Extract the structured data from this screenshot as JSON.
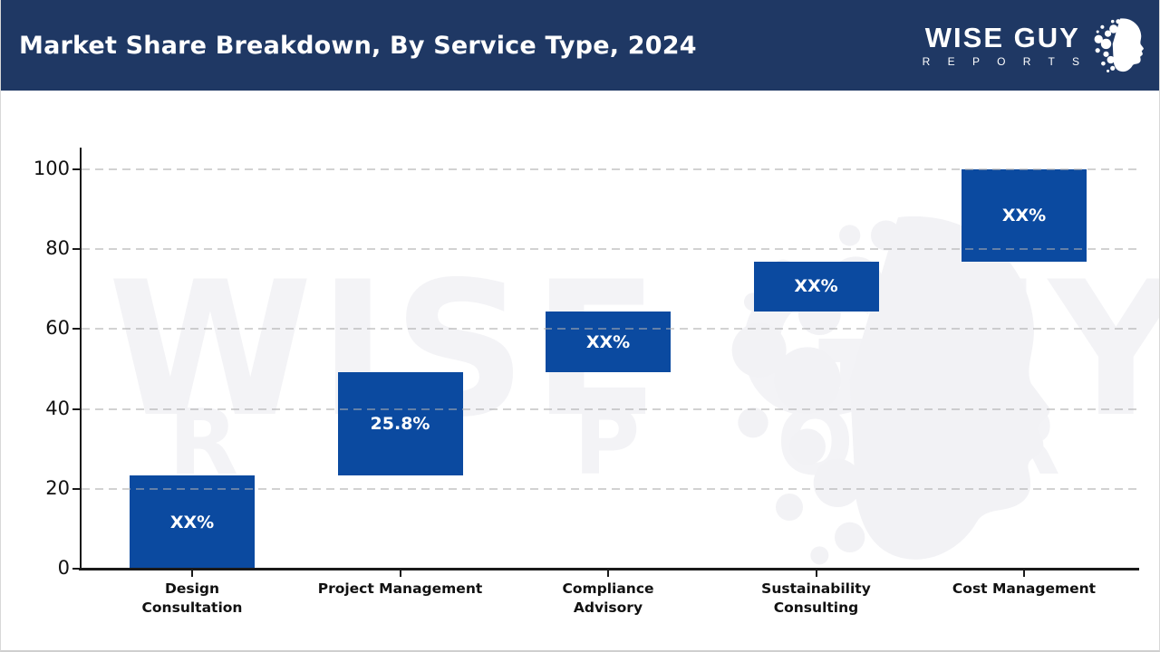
{
  "header": {
    "title": "Market Share Breakdown, By Service Type, 2024",
    "logo": {
      "name": "WISE GUY",
      "sub": "R E P O R T S"
    }
  },
  "watermark": {
    "line1": "WISE GUY",
    "line2": "R E P O R T S"
  },
  "colors": {
    "header_bg": "#1f3864",
    "bar": "#0b4aa0",
    "bar_label": "#ffffff",
    "axis": "#1a1a1a",
    "grid_dash": "#adadad",
    "watermark": "#f3f3f6",
    "text": "#111111"
  },
  "chart_data": {
    "type": "bar",
    "subtype": "waterfall",
    "title": "Market Share Breakdown, By Service Type, 2024",
    "ylim": [
      0,
      100
    ],
    "y_ticks": [
      0,
      20,
      40,
      60,
      80,
      100
    ],
    "grid": "horizontal-dashed",
    "legend": "none",
    "categories": [
      "Design Consultation",
      "Project Management",
      "Compliance Advisory",
      "Sustainability Consulting",
      "Cost Management"
    ],
    "category_lines": [
      [
        "Design",
        "Consultation"
      ],
      [
        "Project Management"
      ],
      [
        "Compliance",
        "Advisory"
      ],
      [
        "Sustainability",
        "Consulting"
      ],
      [
        "Cost Management"
      ]
    ],
    "segments": [
      {
        "category": "Design Consultation",
        "start": 0,
        "end": 23.3,
        "value": 23.3,
        "label": "XX%"
      },
      {
        "category": "Project Management",
        "start": 23.3,
        "end": 49.1,
        "value": 25.8,
        "label": "25.8%"
      },
      {
        "category": "Compliance Advisory",
        "start": 49.1,
        "end": 64.5,
        "value": 15.4,
        "label": "XX%"
      },
      {
        "category": "Sustainability Consulting",
        "start": 64.5,
        "end": 76.9,
        "value": 12.4,
        "label": "XX%"
      },
      {
        "category": "Cost Management",
        "start": 76.9,
        "end": 100,
        "value": 23.1,
        "label": "XX%"
      }
    ]
  }
}
